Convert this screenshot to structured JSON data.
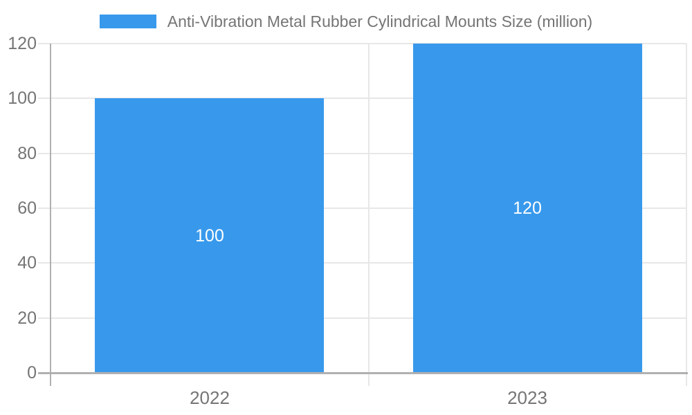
{
  "legend": {
    "label": "Anti-Vibration Metal Rubber Cylindrical Mounts Size (million)"
  },
  "colors": {
    "bar": "#3899ec",
    "axis_line": "#b0b0b0",
    "grid_line": "#e7e7e7",
    "tick_text": "#757575",
    "bar_label_text": "#ffffff",
    "background": "#ffffff"
  },
  "chart_data": {
    "type": "bar",
    "title": "",
    "legend": "Anti-Vibration Metal Rubber Cylindrical Mounts Size (million)",
    "legend_position": "top",
    "categories": [
      "2022",
      "2023"
    ],
    "values": [
      100,
      120
    ],
    "data_labels": [
      "100",
      "120"
    ],
    "data_label_position": "bar-center",
    "xlabel": "",
    "ylabel": "",
    "ylim": [
      0,
      120
    ],
    "yticks": [
      0,
      20,
      40,
      60,
      80,
      100,
      120
    ],
    "grid": true
  }
}
